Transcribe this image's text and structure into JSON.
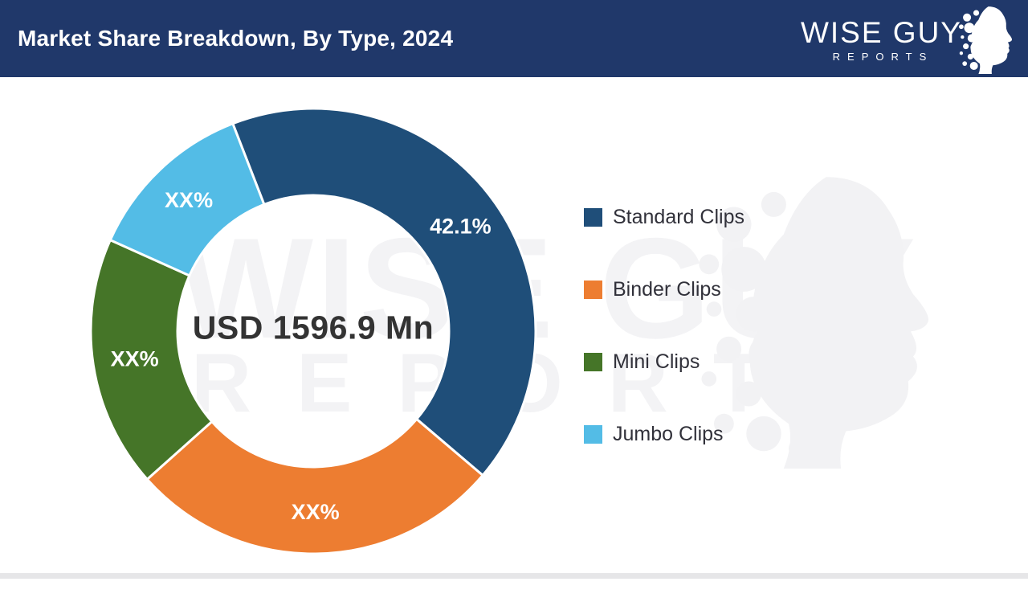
{
  "header": {
    "title": "Market Share Breakdown, By Type, 2024",
    "logo": {
      "line1": "WISE GUY",
      "line2": "REPORTS"
    }
  },
  "watermark": {
    "line1": "WISE GUY",
    "line2": "REPORTS"
  },
  "colors": {
    "header_background": "#20386a",
    "standard_clips": "#1f4e79",
    "binder_clips": "#ed7d31",
    "mini_clips": "#457528",
    "jumbo_clips": "#53bce6",
    "center_text": "#333333",
    "legend_text": "#31313a",
    "watermark": "#f3f3f5",
    "footer_bar": "#e6e6e8"
  },
  "chart_data": {
    "type": "pie",
    "donut": true,
    "title": "Market Share Breakdown, By Type, 2024",
    "center_label": "USD 1596.9 Mn",
    "start_angle_deg": -21.2,
    "inner_radius_ratio": 0.61,
    "legend_position": "right",
    "series": [
      {
        "name": "Standard Clips",
        "share_pct": 42.1,
        "label": "42.1%",
        "color": "#1f4e79"
      },
      {
        "name": "Binder Clips",
        "share_pct": 27.2,
        "label": "XX%",
        "color": "#ed7d31"
      },
      {
        "name": "Mini Clips",
        "share_pct": 18.3,
        "label": "XX%",
        "color": "#457528"
      },
      {
        "name": "Jumbo Clips",
        "share_pct": 12.4,
        "label": "XX%",
        "color": "#53bce6"
      }
    ]
  }
}
